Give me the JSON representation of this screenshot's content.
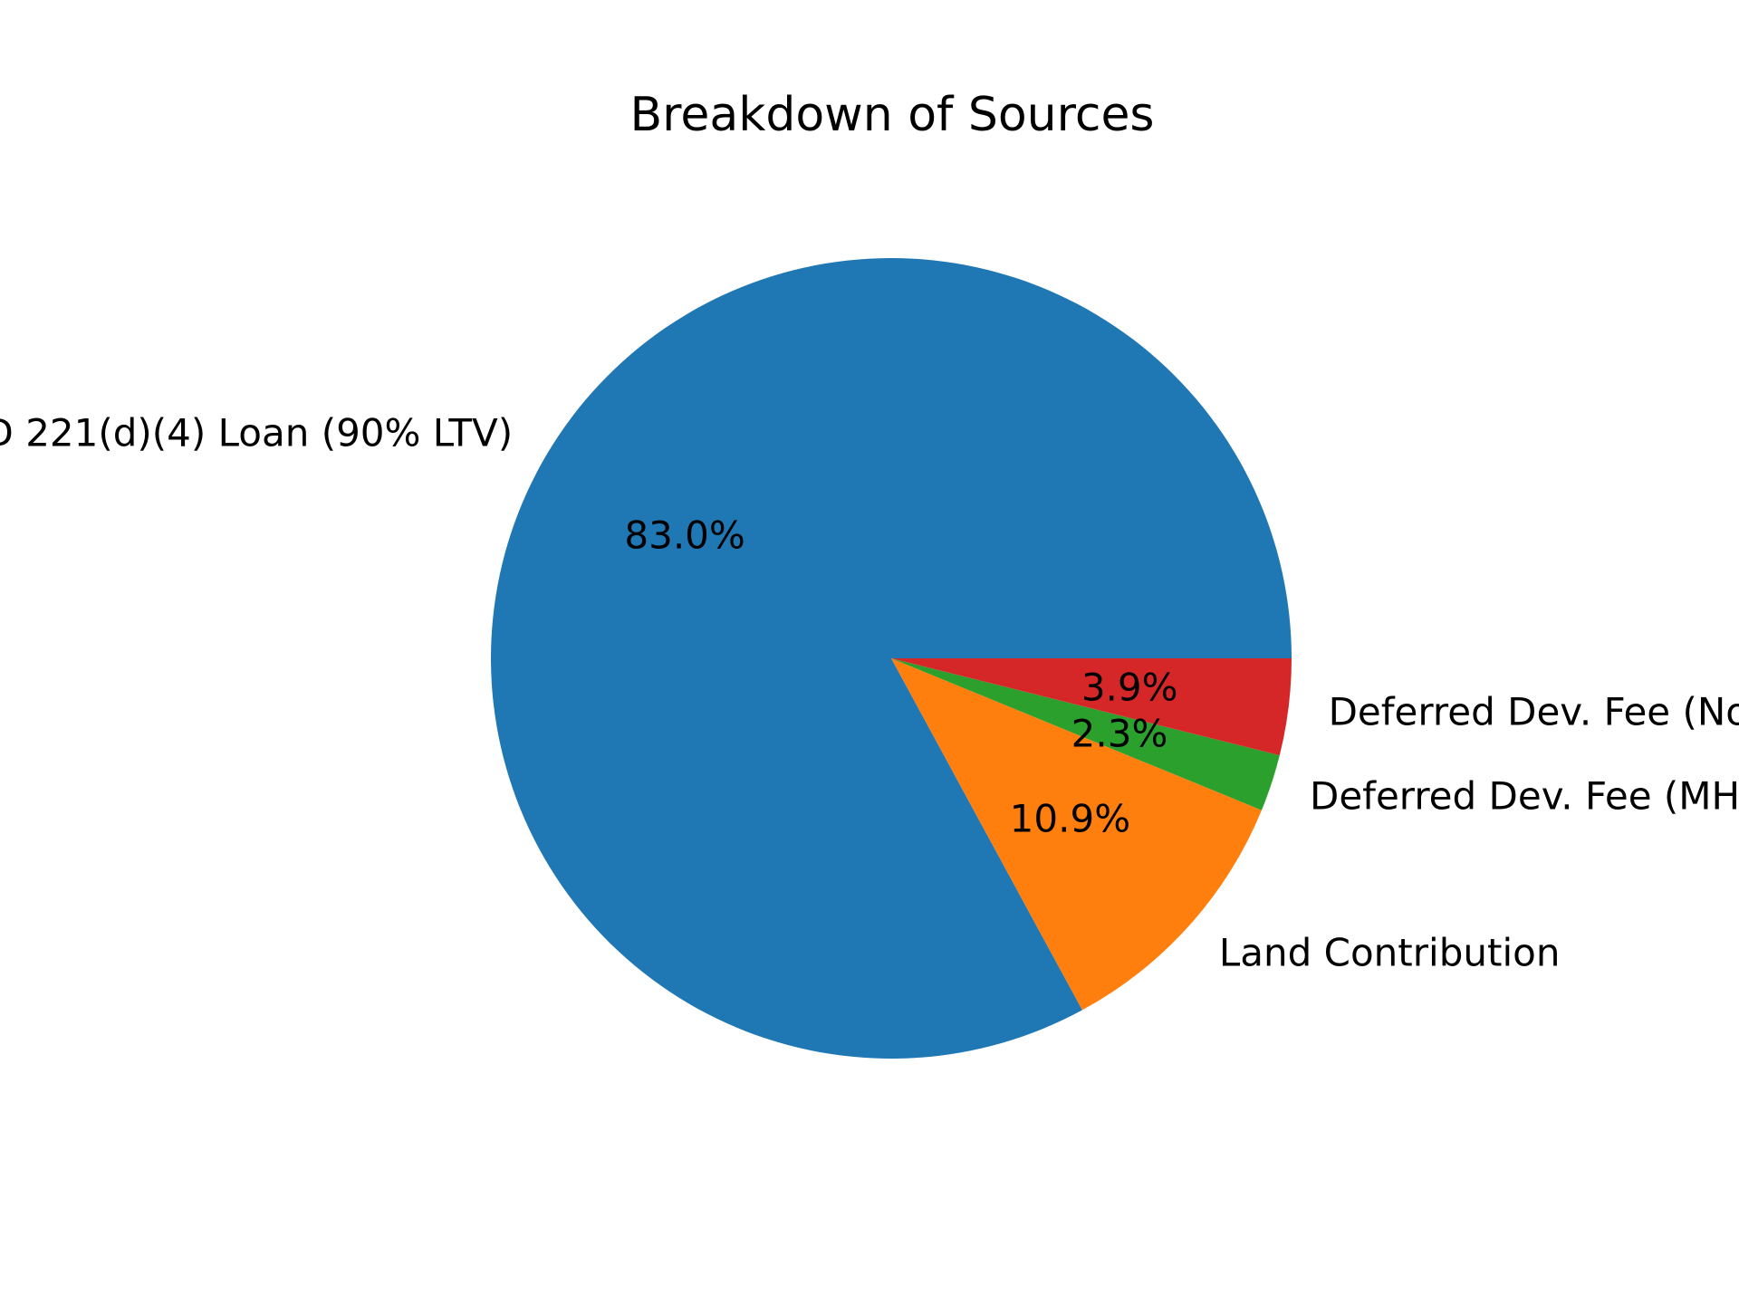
{
  "chart_data": {
    "type": "pie",
    "title": "Breakdown of Sources",
    "slices": [
      {
        "label": "D 221(d)(4) Loan (90% LTV)",
        "value": 83.0,
        "pct_label": "83.0%",
        "color": "#1f77b4"
      },
      {
        "label": "Land Contribution",
        "value": 10.9,
        "pct_label": "10.9%",
        "color": "#ff7f0e"
      },
      {
        "label": "Deferred Dev. Fee (MH",
        "value": 2.3,
        "pct_label": "2.3%",
        "color": "#2ca02c"
      },
      {
        "label": "Deferred Dev. Fee (No",
        "value": 3.9,
        "pct_label": "3.9%",
        "color": "#d62728"
      }
    ],
    "start_angle_deg": 0,
    "direction": "counterclockwise",
    "legend_position": "none",
    "text_color": "#000000",
    "background_color": "#ffffff"
  }
}
